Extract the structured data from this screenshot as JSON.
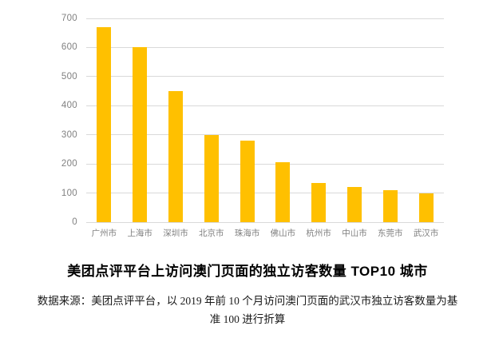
{
  "title": "美团点评平台上访问澳门页面的独立访客数量 TOP10 城市",
  "source_note": {
    "line1": "数据来源：美团点评平台，以 2019 年前 10 个月访问澳门页面的武汉市独立访客数量为基",
    "line2": "准 100 进行折算"
  },
  "chart_data": {
    "type": "bar",
    "title": "美团点评平台上访问澳门页面的独立访客数量 TOP10 城市",
    "categories": [
      "广州市",
      "上海市",
      "深圳市",
      "北京市",
      "珠海市",
      "佛山市",
      "杭州市",
      "中山市",
      "东莞市",
      "武汉市"
    ],
    "values": [
      670,
      600,
      450,
      300,
      280,
      205,
      135,
      120,
      110,
      100
    ],
    "xlabel": "",
    "ylabel": "",
    "ylim": [
      0,
      700
    ],
    "yticks": [
      0,
      100,
      200,
      300,
      400,
      500,
      600,
      700
    ],
    "grid": true,
    "legend": false,
    "annotation": "武汉市独立访客数量为基准 100",
    "colors": {
      "bar": "#FFC000",
      "gridline": "#D9D9D9",
      "y_tick_label": "#808080",
      "x_tick_label": "#7F7F7F",
      "title": "#000000",
      "source_text": "#1A1A1A",
      "background": "#FFFFFF"
    }
  }
}
